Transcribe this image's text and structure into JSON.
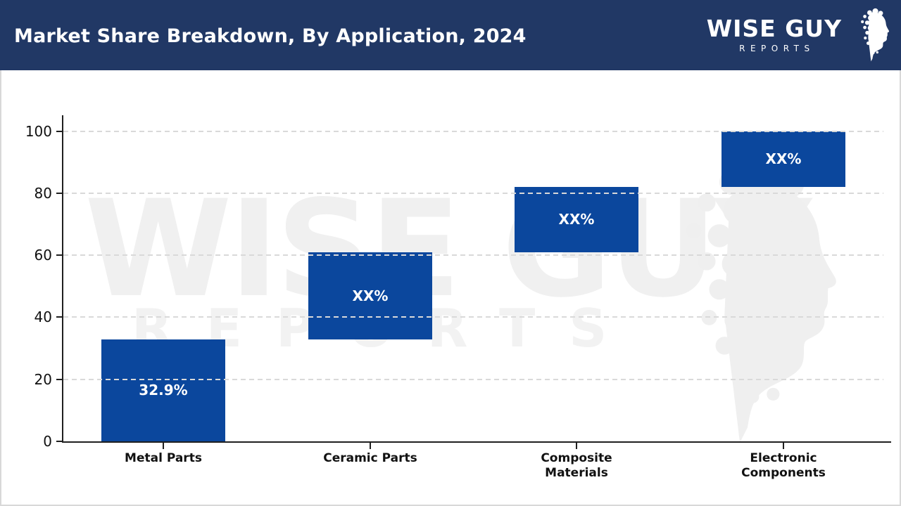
{
  "header": {
    "title": "Market Share Breakdown, By Application, 2024",
    "bg_color": "#213865",
    "brand": {
      "name": "WISE GUY",
      "sub": "REPORTS"
    }
  },
  "chart_data": {
    "type": "bar",
    "subtype": "waterfall",
    "title": "Market Share Breakdown, By Application, 2024",
    "categories": [
      "Metal Parts",
      "Ceramic Parts",
      "Composite Materials",
      "Electronic Components"
    ],
    "bars": [
      {
        "category": "Metal Parts",
        "start": 0,
        "end": 32.9,
        "label": "32.9%"
      },
      {
        "category": "Ceramic Parts",
        "start": 32.9,
        "end": 61,
        "label": "XX%"
      },
      {
        "category": "Composite Materials",
        "start": 61,
        "end": 82,
        "label": "XX%"
      },
      {
        "category": "Electronic Components",
        "start": 82,
        "end": 100,
        "label": "XX%"
      }
    ],
    "xlabel": "",
    "ylabel": "",
    "ylim": [
      0,
      100
    ],
    "yticks": [
      0,
      20,
      40,
      60,
      80,
      100
    ],
    "grid": "horizontal-dashed",
    "legend": "none",
    "bar_color": "#0b479d",
    "bar_label_color": "#ffffff",
    "watermark": {
      "line1": "WISE GUY",
      "line2": "REPORTS"
    }
  }
}
